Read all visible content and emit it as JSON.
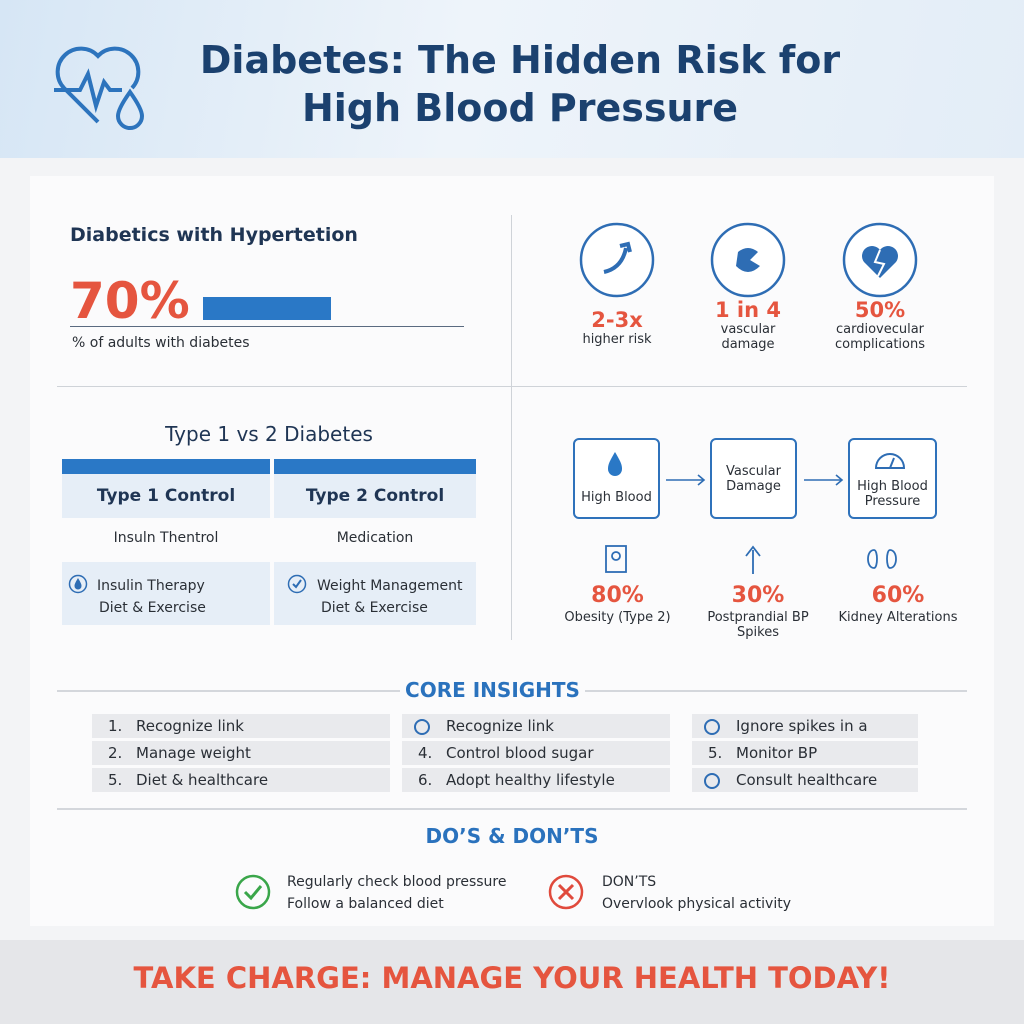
{
  "header": {
    "title_lines": [
      "Diabetes: The Hidden Risk for",
      "High Blood Pressure"
    ]
  },
  "prevalence": {
    "heading": "Diabetics with Hypertetion",
    "value": "70%",
    "caption": "% of adults with diabetes"
  },
  "risk_stats": [
    {
      "value": "2-3x",
      "label": "higher risk"
    },
    {
      "value": "1 in 4",
      "label": "vascular damage"
    },
    {
      "value": "50%",
      "label": "cardiovecular complications"
    }
  ],
  "comparison": {
    "title": "Type 1 vs 2 Diabetes",
    "columns": [
      {
        "header": "Type 1 Control",
        "row1": "Insuln Thentrol",
        "row2": [
          "Insulin Therapy",
          "Diet & Exercise"
        ]
      },
      {
        "header": "Type 2 Control",
        "row1": "Medication",
        "row2": [
          "Weight Management",
          "Diet & Exercise"
        ]
      }
    ]
  },
  "pathway": {
    "nodes": [
      "High Blood",
      "Vascular Damage",
      "High Blood Pressure"
    ],
    "stats": [
      {
        "value": "80%",
        "label": "Obesity (Type 2)"
      },
      {
        "value": "30%",
        "label": "Postprandial BP Spikes"
      },
      {
        "value": "60%",
        "label": "Kidney Alterations"
      }
    ]
  },
  "insights": {
    "title": "CORE INSIGHTS",
    "rows": [
      [
        {
          "number": "1.",
          "text": "Recognize link"
        },
        {
          "text": "Recognize link"
        },
        {
          "text": "Ignore spikes in a"
        }
      ],
      [
        {
          "number": "2.",
          "text": "Manage weight"
        },
        {
          "number": "4.",
          "text": "Control blood sugar"
        },
        {
          "number": "5.",
          "text": "Monitor BP"
        }
      ],
      [
        {
          "number": "5.",
          "text": "Diet & healthcare"
        },
        {
          "number": "6.",
          "text": "Adopt healthy lifestyle"
        },
        {
          "text": "Consult healthcare"
        }
      ]
    ]
  },
  "dos_donts": {
    "title": "DO’S & DON’TS",
    "dos": [
      "Regularly check blood pressure",
      "Follow a balanced diet"
    ],
    "donts": [
      "DON’TS",
      "Overvlook physical activity"
    ]
  },
  "footer": {
    "cta": "TAKE CHARGE: MANAGE YOUR HEALTH TODAY!"
  }
}
